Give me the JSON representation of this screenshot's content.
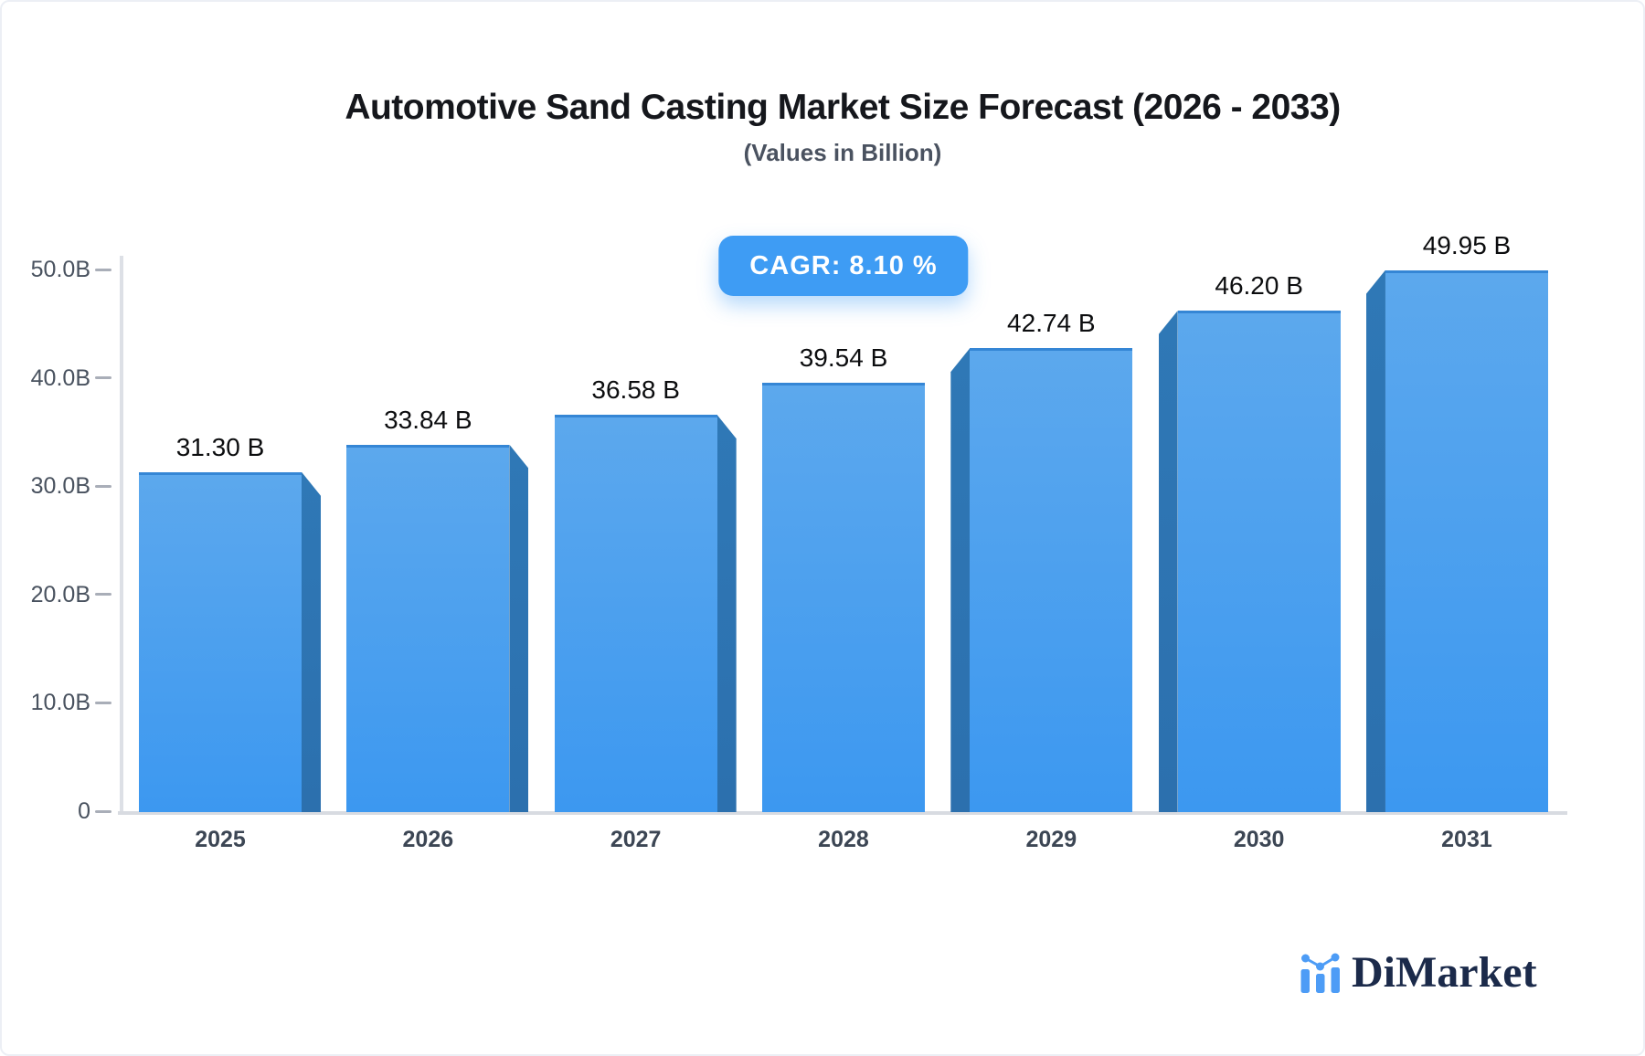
{
  "chart_data": {
    "type": "bar",
    "title": "Automotive Sand Casting Market Size Forecast (2026 - 2033)",
    "subtitle": "(Values in Billion)",
    "cagr_label": "CAGR: 8.10 %",
    "categories": [
      "2025",
      "2026",
      "2027",
      "2028",
      "2029",
      "2030",
      "2031"
    ],
    "values": [
      31.3,
      33.84,
      36.58,
      39.54,
      42.74,
      46.2,
      49.95
    ],
    "value_labels": [
      "31.30 B",
      "33.84 B",
      "36.58 B",
      "39.54 B",
      "42.74 B",
      "46.20 B",
      "49.95 B"
    ],
    "xlabel": "",
    "ylabel": "",
    "ylim": [
      0,
      50
    ],
    "ytick_values": [
      50,
      40,
      30,
      20,
      10,
      0
    ],
    "ytick_labels": [
      "50.0B",
      "40.0B",
      "30.0B",
      "20.0B",
      "10.0B",
      "0"
    ],
    "grid": false,
    "legend": false,
    "bar_style": "3d-perspective",
    "colors": {
      "bar_face_top": "#5CA8ED",
      "bar_face_bottom": "#3C98F0",
      "bar_side": "#2E76B4",
      "badge_bg": "#3E9CF4",
      "badge_text": "#FFFFFF",
      "axis_line": "#DCDFE5",
      "tick_text": "#49525F",
      "category_text": "#3C4654",
      "value_text": "#0C0D0F",
      "title_text": "#15171C",
      "subtitle_text": "#4A5260"
    }
  },
  "branding": {
    "logo_text": "DiMarket",
    "logo_text_color": "#1B2A4A",
    "logo_icon": "bar-line-chart-icon",
    "logo_icon_color": "#4D9CF6"
  }
}
